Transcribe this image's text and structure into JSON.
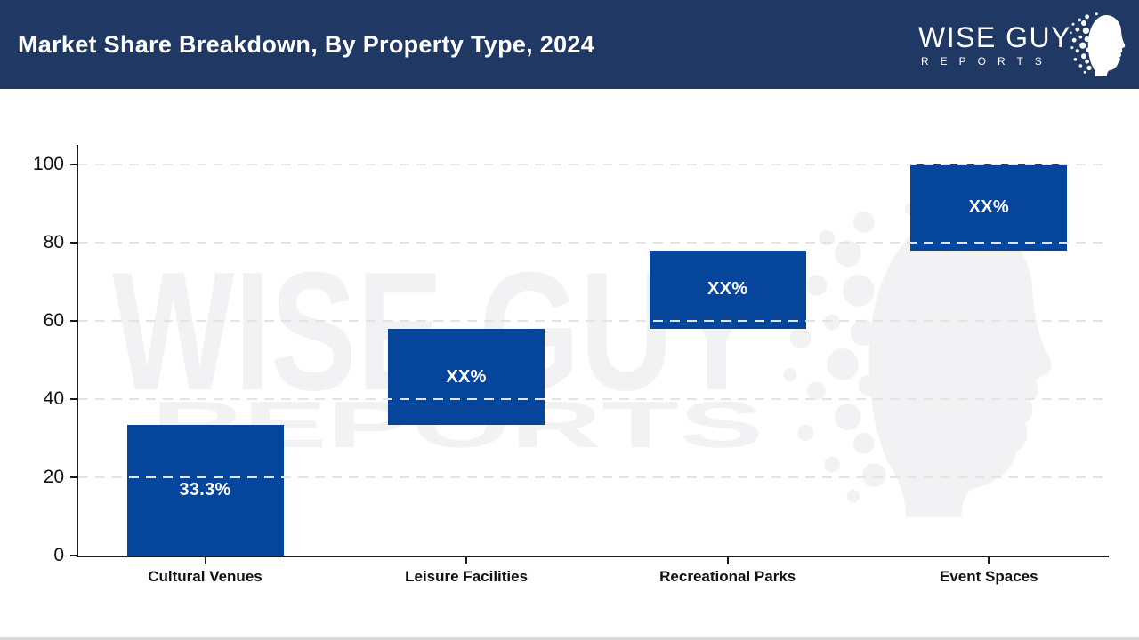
{
  "header": {
    "title": "Market Share Breakdown, By Property Type, 2024",
    "logo": {
      "name": "WISE GUY",
      "sub": "REPORTS"
    }
  },
  "watermark": {
    "name": "WISE GUY",
    "sub": "REPORTS"
  },
  "chart_data": {
    "type": "bar",
    "subtype": "floating-waterfall",
    "title": "Market Share Breakdown, By Property Type, 2024",
    "xlabel": "",
    "ylabel": "",
    "categories": [
      "Cultural Venues",
      "Leisure Facilities",
      "Recreational Parks",
      "Event Spaces"
    ],
    "bars": [
      {
        "category": "Cultural Venues",
        "start": 0,
        "end": 33.3,
        "label": "33.3%"
      },
      {
        "category": "Leisure Facilities",
        "start": 33.3,
        "end": 58,
        "label": "XX%"
      },
      {
        "category": "Recreational Parks",
        "start": 58,
        "end": 78,
        "label": "XX%"
      },
      {
        "category": "Event Spaces",
        "start": 78,
        "end": 100,
        "label": "XX%"
      }
    ],
    "increments": [
      33.3,
      24.7,
      20,
      22
    ],
    "yticks": [
      0,
      20,
      40,
      60,
      80,
      100
    ],
    "ylim": [
      0,
      105
    ],
    "grid": "horizontal dashed, drawn over bars",
    "legend": "none",
    "bar_color": "#05459c",
    "colors": {
      "header_bg": "#203864",
      "bar": "#05459c",
      "grid": "#e4e4e4",
      "axis": "#1a1a1a",
      "bar_label_text": "#ffffff",
      "tick_text": "#111111",
      "watermark": "#f2f2f4",
      "footer_line": "#d9d9d9"
    }
  }
}
